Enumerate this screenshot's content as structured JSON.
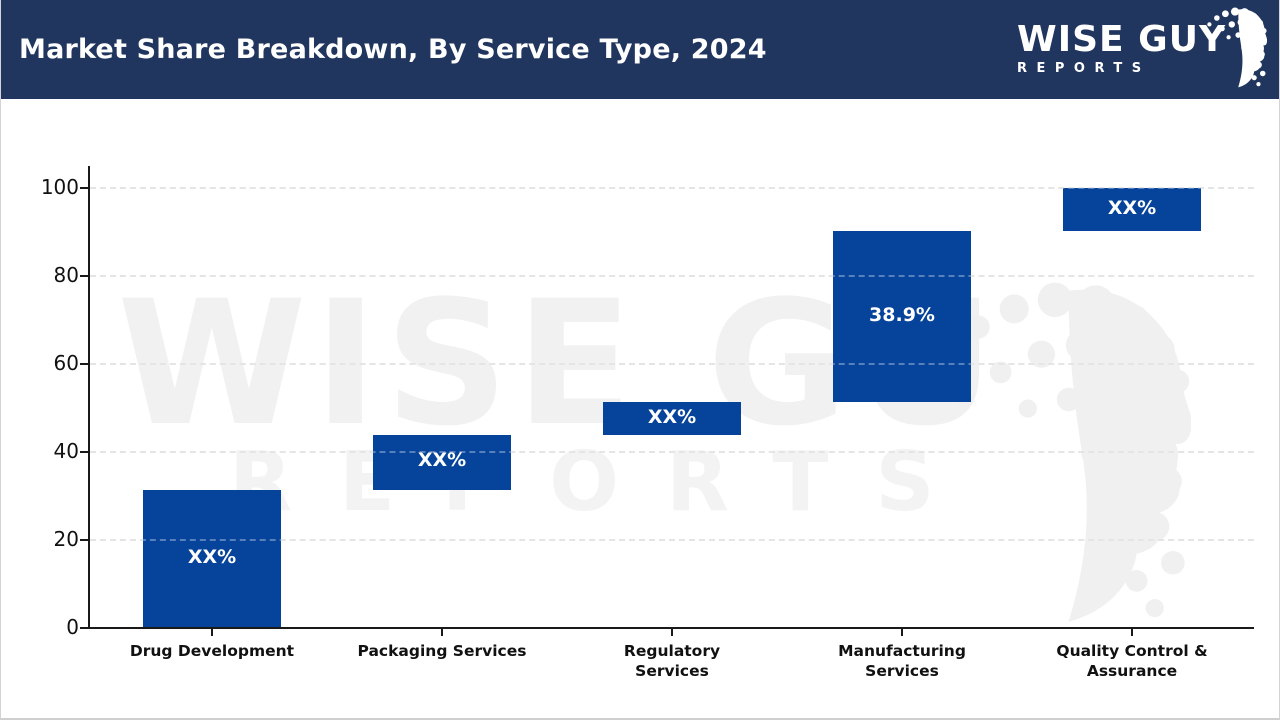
{
  "header": {
    "title": "Market Share Breakdown, By Service Type, 2024",
    "bg_color": "#21365f",
    "logo": {
      "name_top": "WISE GUY",
      "name_bottom": "REPORTS"
    }
  },
  "watermark": {
    "line1": "WISE GU",
    "line2": "REPORTS"
  },
  "chart_data": {
    "type": "bar",
    "variant": "waterfall",
    "title": "Market Share Breakdown, By Service Type, 2024",
    "categories": [
      "Drug Development",
      "Packaging Services",
      "Regulatory Services",
      "Manufacturing Services",
      "Quality Control & Assurance"
    ],
    "category_lines": [
      [
        "Drug Development"
      ],
      [
        "Packaging Services"
      ],
      [
        "Regulatory",
        "Services"
      ],
      [
        "Manufacturing",
        "Services"
      ],
      [
        "Quality Control &",
        "Assurance"
      ]
    ],
    "segments": [
      {
        "category": "Drug Development",
        "start": 0,
        "end": 31.4,
        "label": "XX%"
      },
      {
        "category": "Packaging Services",
        "start": 31.4,
        "end": 43.9,
        "label": "XX%"
      },
      {
        "category": "Regulatory Services",
        "start": 43.9,
        "end": 51.3,
        "label": "XX%"
      },
      {
        "category": "Manufacturing Services",
        "start": 51.3,
        "end": 90.2,
        "label": "38.9%"
      },
      {
        "category": "Quality Control & Assurance",
        "start": 90.2,
        "end": 100,
        "label": "XX%"
      }
    ],
    "yticks": [
      0,
      20,
      40,
      60,
      80,
      100
    ],
    "ylim": [
      0,
      105
    ],
    "xlabel": "",
    "ylabel": "",
    "grid": "horizontal-dashed",
    "legend": "none",
    "bar_color": "#06439a",
    "label_color": "#ffffff",
    "axis_color": "#1a1a1a",
    "grid_color": "#d9d9d9"
  }
}
